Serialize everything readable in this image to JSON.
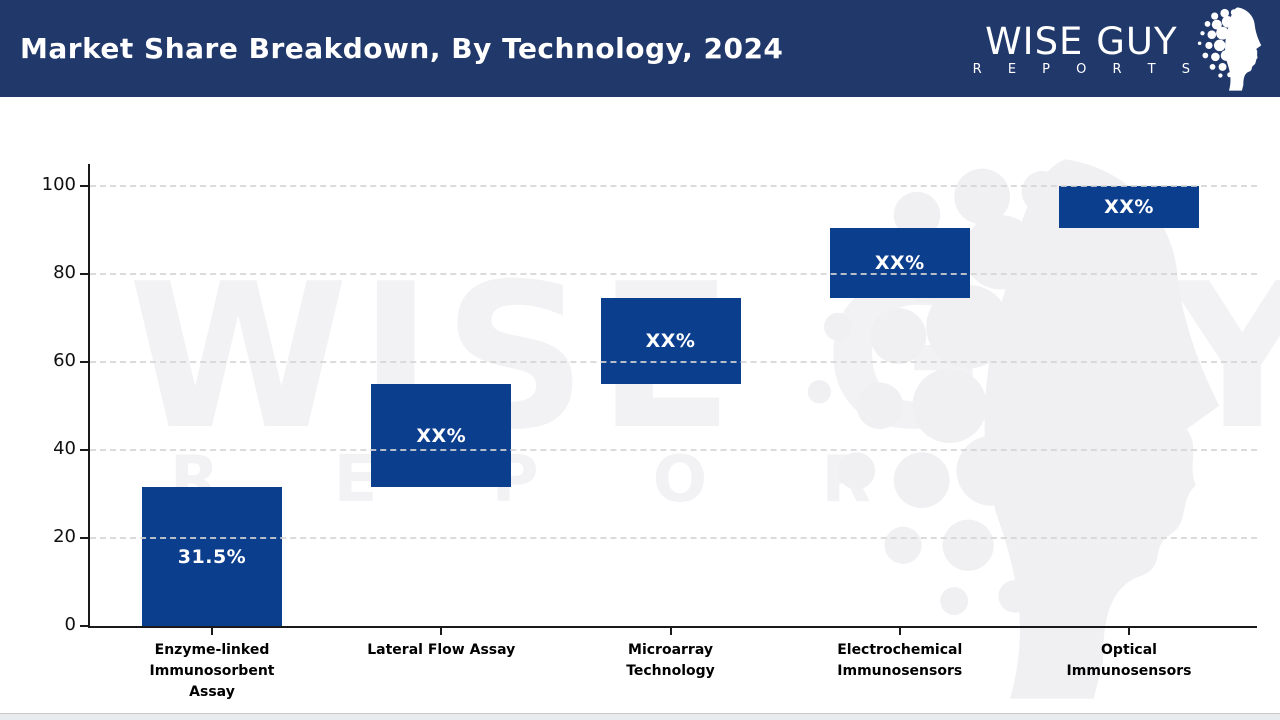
{
  "header": {
    "title": "Market Share Breakdown, By Technology, 2024",
    "logo": {
      "line1": "WISE GUY",
      "line2": "R E P O R T S"
    }
  },
  "watermark": {
    "line1": "WISE GUY",
    "line2": "R E P O R T S"
  },
  "colors": {
    "header_bg": "#21386b",
    "bar": "#0c3e8e",
    "bar_label": "#ffffff",
    "gridline": "#d5d5d5",
    "axis": "#1a1a1a",
    "watermark": "#f2f2f4",
    "footer_strip": "#e9ecef"
  },
  "chart_data": {
    "type": "bar",
    "subtype": "waterfall",
    "title": "Market Share Breakdown, By Technology, 2024",
    "xlabel": "",
    "ylabel": "",
    "ylim": [
      0,
      105
    ],
    "yticks": [
      0,
      20,
      40,
      60,
      80,
      100
    ],
    "grid": "horizontal dashed, drawn over bars",
    "legend": "none",
    "categories": [
      "Enzyme-linked Immunosorbent Assay",
      "Lateral Flow Assay",
      "Microarray Technology",
      "Electrochemical Immunosensors",
      "Optical Immunosensors"
    ],
    "segments": [
      {
        "category": "Enzyme-linked Immunosorbent Assay",
        "label_lines": [
          "Enzyme-linked",
          "Immunosorbent",
          "Assay"
        ],
        "start": 0,
        "end": 31.5,
        "value": 31.5,
        "label": "31.5%"
      },
      {
        "category": "Lateral Flow Assay",
        "label_lines": [
          "Lateral Flow Assay"
        ],
        "start": 31.5,
        "end": 55,
        "value": 23.5,
        "label": "XX%"
      },
      {
        "category": "Microarray Technology",
        "label_lines": [
          "Microarray",
          "Technology"
        ],
        "start": 55,
        "end": 74.5,
        "value": 19.5,
        "label": "XX%"
      },
      {
        "category": "Electrochemical Immunosensors",
        "label_lines": [
          "Electrochemical",
          "Immunosensors"
        ],
        "start": 74.5,
        "end": 90.5,
        "value": 16,
        "label": "XX%"
      },
      {
        "category": "Optical Immunosensors",
        "label_lines": [
          "Optical",
          "Immunosensors"
        ],
        "start": 90.5,
        "end": 100,
        "value": 9.5,
        "label": "XX%"
      }
    ]
  }
}
